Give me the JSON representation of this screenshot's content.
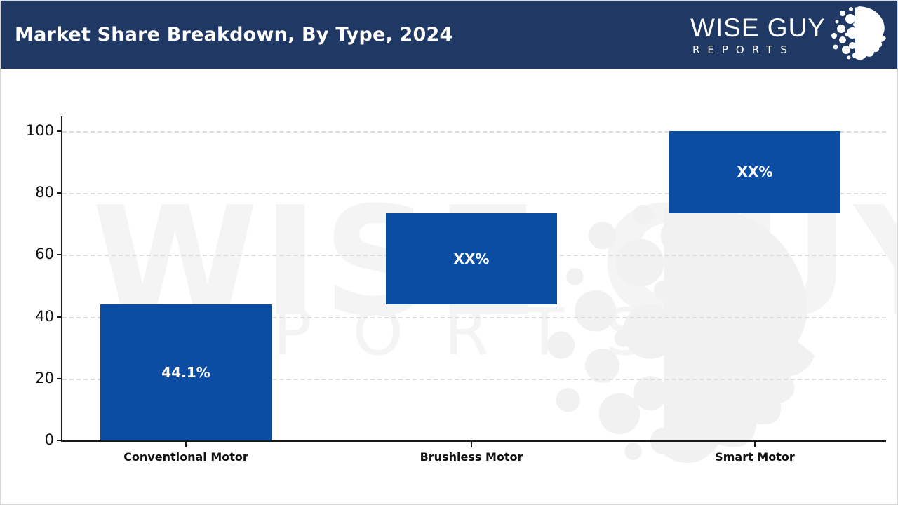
{
  "header": {
    "title": "Market Share Breakdown, By Type, 2024",
    "bg_color": "#203864",
    "text_color": "#ffffff",
    "logo": {
      "line1": "WISE GUY",
      "line2": "REPORTS"
    }
  },
  "watermark": {
    "line1": "WISE GUY",
    "line2": "REPORTS"
  },
  "chart_data": {
    "type": "bar",
    "subtype": "waterfall-floating-bars",
    "title": "Market Share Breakdown, By Type, 2024",
    "categories": [
      "Conventional Motor",
      "Brushless Motor",
      "Smart Motor"
    ],
    "segments": [
      {
        "category": "Conventional Motor",
        "start": 0,
        "end": 44.1,
        "label": "44.1%"
      },
      {
        "category": "Brushless Motor",
        "start": 44.1,
        "end": 73.5,
        "label": "XX%"
      },
      {
        "category": "Smart Motor",
        "start": 73.5,
        "end": 100,
        "label": "XX%"
      }
    ],
    "xlabel": "",
    "ylabel": "",
    "ylim": [
      0,
      100
    ],
    "yticks": [
      0,
      20,
      40,
      60,
      80,
      100
    ],
    "grid": "horizontal dashed gridlines at each y tick",
    "legend": "none",
    "bar_color": "#0b4da2",
    "bar_label_color": "#ffffff",
    "axis_color": "#1a1a1a",
    "gridline_color": "#dcdcdc",
    "tick_label_color": "#111111"
  }
}
